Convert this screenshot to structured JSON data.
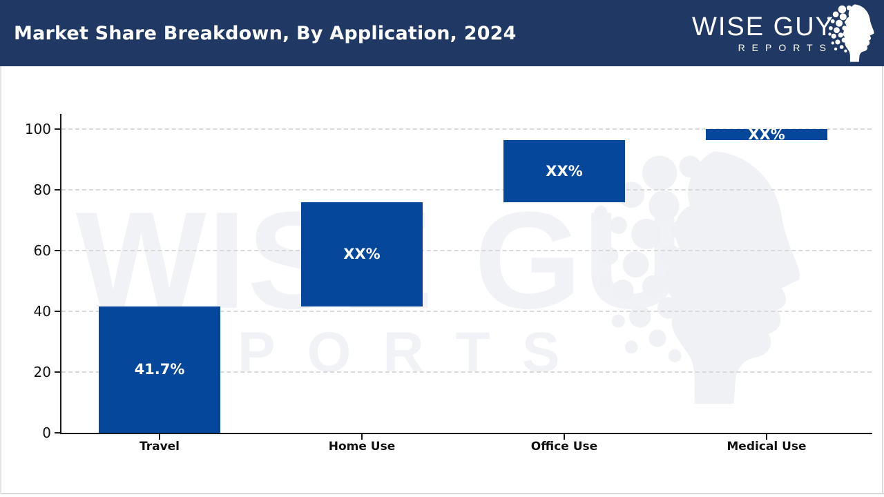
{
  "header": {
    "title": "Market Share Breakdown, By Application, 2024",
    "logo": {
      "line1": "WISE GUY",
      "line2": "REPORTS"
    }
  },
  "watermark": {
    "line1": "WISE GUY",
    "line2": "REPORTS"
  },
  "chart_data": {
    "type": "bar",
    "subtype": "waterfall",
    "title": "Market Share Breakdown, By Application, 2024",
    "categories": [
      "Travel",
      "Home Use",
      "Office Use",
      "Medical Use"
    ],
    "segments": [
      {
        "category": "Travel",
        "start": 0,
        "end": 41.7,
        "label": "41.7%"
      },
      {
        "category": "Home Use",
        "start": 41.7,
        "end": 76.0,
        "label": "XX%"
      },
      {
        "category": "Office Use",
        "start": 76.0,
        "end": 96.4,
        "label": "XX%"
      },
      {
        "category": "Medical Use",
        "start": 96.4,
        "end": 100.0,
        "label": "XX%"
      }
    ],
    "xlabel": "",
    "ylabel": "",
    "ylim": [
      0,
      100
    ],
    "yticks": [
      0,
      20,
      40,
      60,
      80,
      100
    ],
    "grid": "horizontal-dashed",
    "legend": "none",
    "colors": {
      "bar": "#05479b",
      "bar_label": "#ffffff",
      "header_bg": "#1f3864",
      "grid": "#d9d9d9",
      "watermark": "#f1f2f5"
    }
  }
}
